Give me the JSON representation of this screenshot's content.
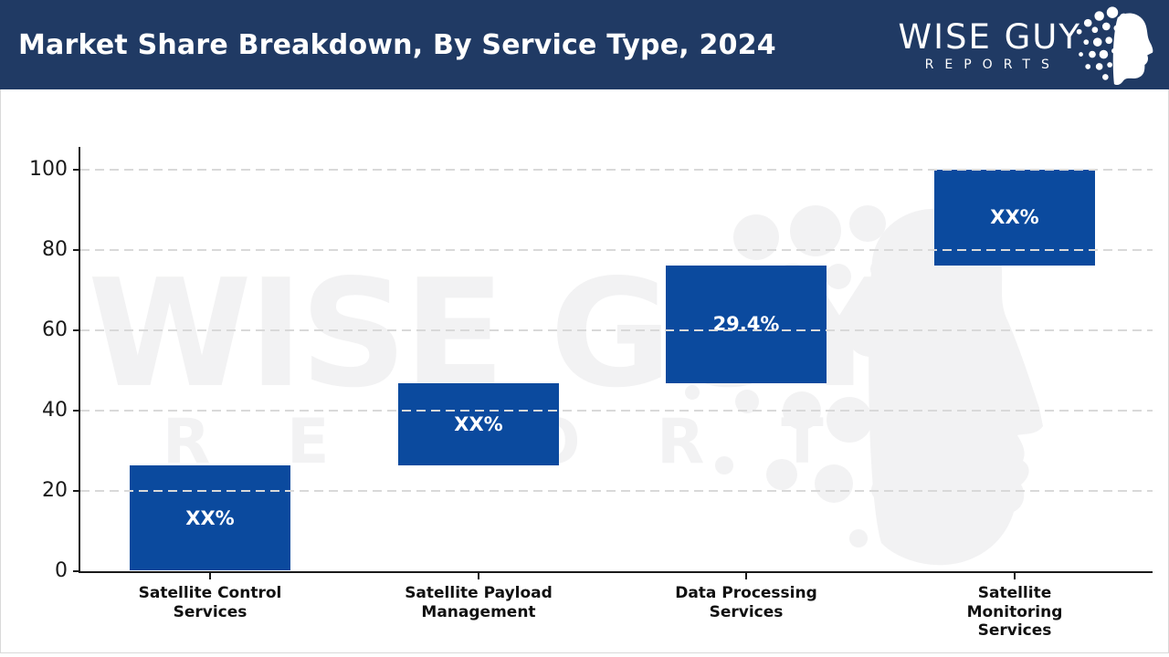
{
  "header": {
    "title": "Market Share Breakdown, By Service Type, 2024",
    "bg_color": "#203a64",
    "logo": {
      "primary": "WISE GUY",
      "secondary": "REPORTS"
    }
  },
  "watermark": {
    "primary": "WISE GUY",
    "secondary": "R E P O R T S",
    "color": "#f2f2f3"
  },
  "chart_data": {
    "type": "bar",
    "variant": "waterfall",
    "title": "Market Share Breakdown, By Service Type, 2024",
    "categories": [
      "Satellite Control Services",
      "Satellite Payload Management",
      "Data Processing Services",
      "Satellite Monitoring Services"
    ],
    "category_label_lines": [
      "Satellite Control\nServices",
      "Satellite Payload\nManagement",
      "Data Processing\nServices",
      "Satellite\nMonitoring\nServices"
    ],
    "series": [
      {
        "name": "Market share (%)",
        "segments": [
          {
            "category": "Satellite Control Services",
            "start": 0,
            "end": 26.2,
            "label": "XX%"
          },
          {
            "category": "Satellite Payload Management",
            "start": 26.2,
            "end": 46.8,
            "label": "XX%"
          },
          {
            "category": "Data Processing Services",
            "start": 46.8,
            "end": 76.2,
            "label": "29.4%"
          },
          {
            "category": "Satellite Monitoring Services",
            "start": 76.2,
            "end": 100,
            "label": "XX%"
          }
        ]
      }
    ],
    "yticks": [
      "0",
      "20",
      "40",
      "60",
      "80",
      "100"
    ],
    "ylim": [
      0,
      100
    ],
    "grid": {
      "horizontal": true,
      "style": "dashed",
      "color": "#d9d9d9"
    },
    "legend": "none",
    "bar_color": "#0b4a9e",
    "bar_label_color": "#ffffff",
    "axis_color": "#1a1a1a",
    "tick_label_color": "#1a1a1a"
  }
}
